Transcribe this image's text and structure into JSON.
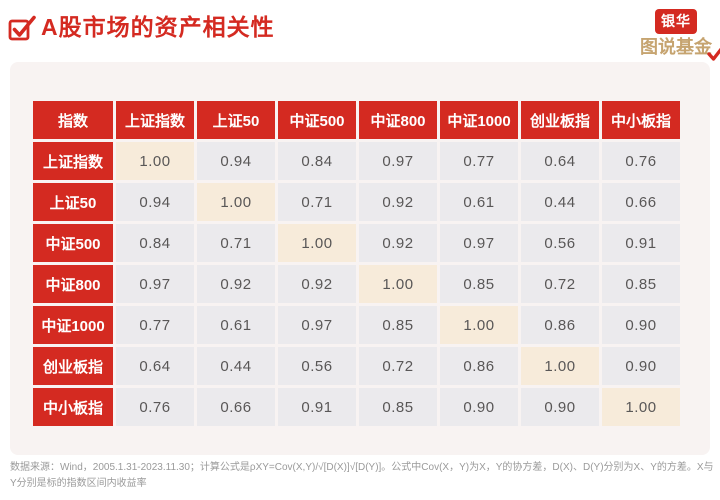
{
  "page": {
    "title": "A股市场的资产相关性"
  },
  "logo": {
    "brand": "银华",
    "series": "图说基金"
  },
  "chart_data": {
    "type": "table",
    "title": "A股市场的资产相关性",
    "description": "correlation-matrix",
    "columns": [
      "指数",
      "上证指数",
      "上证50",
      "中证500",
      "中证800",
      "中证1000",
      "创业板指",
      "中小板指"
    ],
    "rows": [
      {
        "label": "上证指数",
        "values": [
          1.0,
          0.94,
          0.84,
          0.97,
          0.77,
          0.64,
          0.76
        ]
      },
      {
        "label": "上证50",
        "values": [
          0.94,
          1.0,
          0.71,
          0.92,
          0.61,
          0.44,
          0.66
        ]
      },
      {
        "label": "中证500",
        "values": [
          0.84,
          0.71,
          1.0,
          0.92,
          0.97,
          0.56,
          0.91
        ]
      },
      {
        "label": "中证800",
        "values": [
          0.97,
          0.92,
          0.92,
          1.0,
          0.85,
          0.72,
          0.85
        ]
      },
      {
        "label": "中证1000",
        "values": [
          0.77,
          0.61,
          0.97,
          0.85,
          1.0,
          0.86,
          0.9
        ]
      },
      {
        "label": "创业板指",
        "values": [
          0.64,
          0.44,
          0.56,
          0.72,
          0.86,
          1.0,
          0.9
        ]
      },
      {
        "label": "中小板指",
        "values": [
          0.76,
          0.66,
          0.91,
          0.85,
          0.9,
          0.9,
          1.0
        ]
      }
    ],
    "value_format": "2dp",
    "highlight": "diagonal"
  },
  "footer": {
    "text": "数据来源：Wind，2005.1.31-2023.11.30；计算公式是ρXY=Cov(X,Y)/√[D(X)]√[D(Y)]。公式中Cov(X，Y)为X，Y的协方差，D(X)、D(Y)分别为X、Y的方差。X与Y分别是标的指数区间内收益率"
  },
  "colors": {
    "accent_red": "#d42a21",
    "cell_gray": "#ebeaed",
    "diagonal_beige": "#f7ebda",
    "panel_bg": "#f8f3f2",
    "logo_gold": "#c6a470",
    "number_text": "#595757",
    "footer_gray": "#9a9a9a"
  }
}
